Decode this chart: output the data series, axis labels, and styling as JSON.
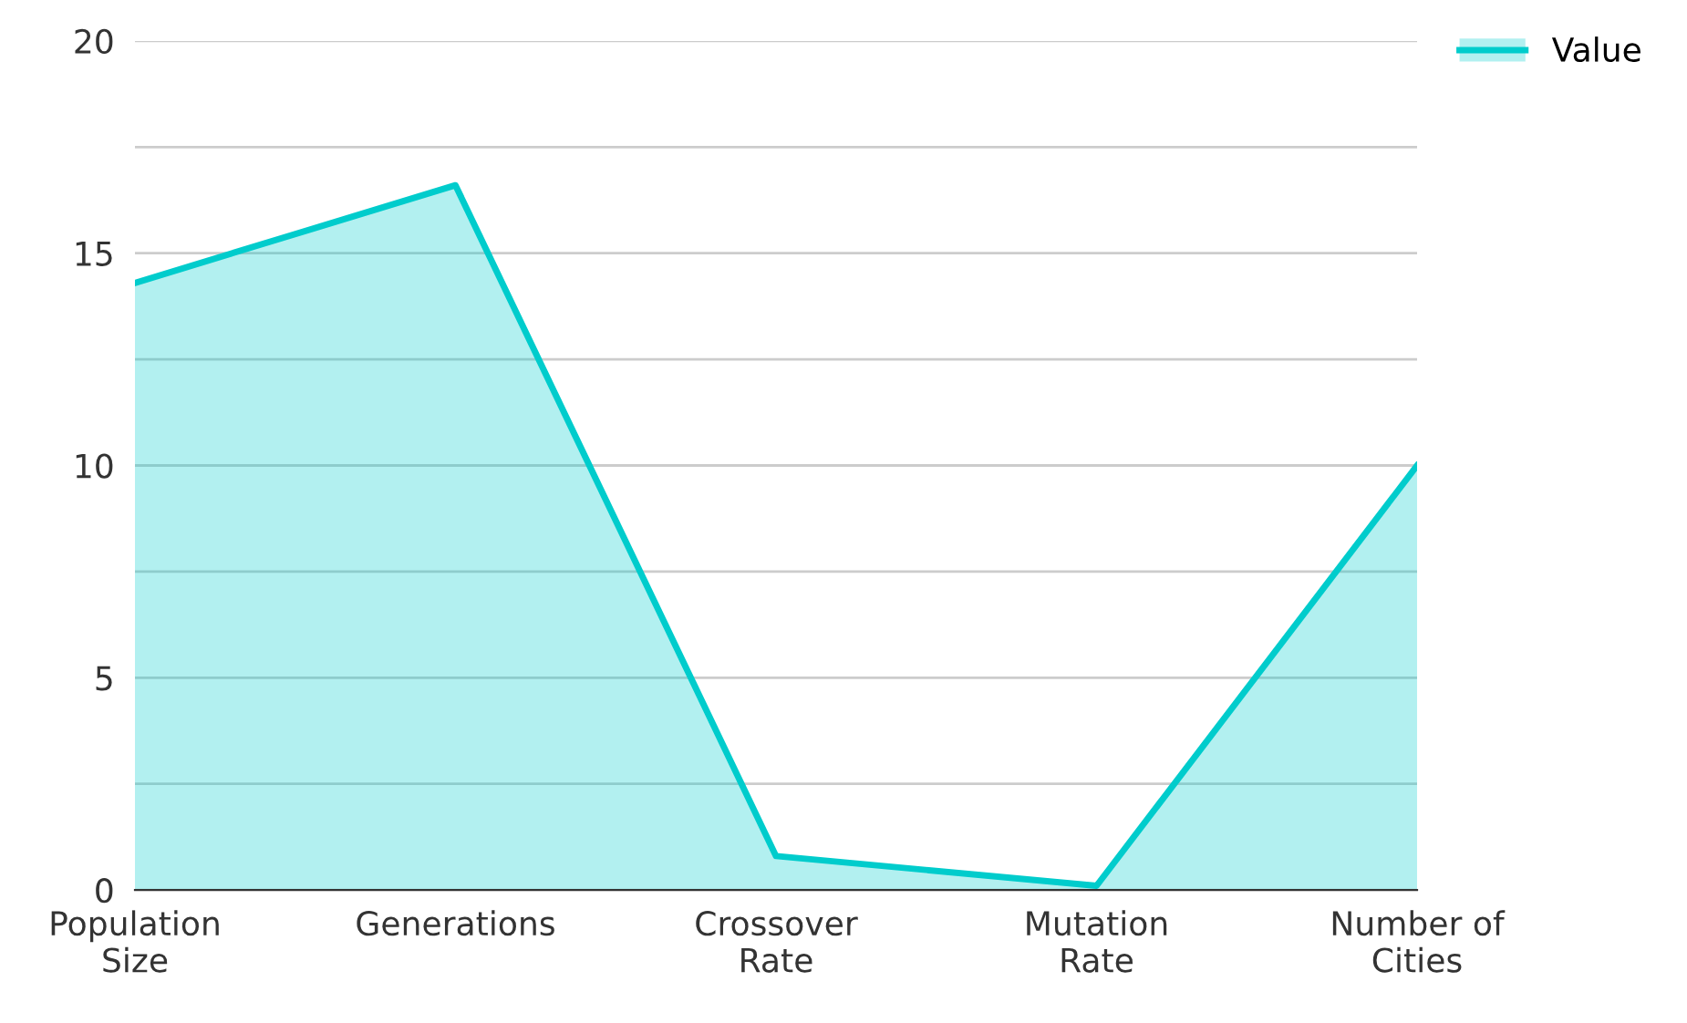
{
  "chart_data": {
    "type": "area",
    "categories": [
      "Population\nSize",
      "Generations",
      "Crossover\nRate",
      "Mutation\nRate",
      "Number of\nCities"
    ],
    "series": [
      {
        "name": "Value",
        "color": "#00cccc",
        "values": [
          14.3,
          16.6,
          0.8,
          0.1,
          10
        ]
      }
    ],
    "ylim": [
      0,
      20
    ],
    "yticks": [
      0,
      {
        "value": 2.5,
        "label": null
      },
      5,
      {
        "value": 7.5,
        "label": null
      },
      10,
      {
        "value": 12.5,
        "label": null
      },
      15,
      {
        "value": 17.5,
        "label": null
      },
      20
    ],
    "grid": "y",
    "legend": "top right"
  }
}
